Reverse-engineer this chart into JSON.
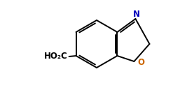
{
  "bg_color": "#ffffff",
  "bond_color": "#000000",
  "N_color": "#0000bb",
  "O_color": "#cc6600",
  "label_HO2C": "HO₂C",
  "label_N": "N",
  "label_O": "O",
  "figsize": [
    2.47,
    1.29
  ],
  "dpi": 100,
  "lw": 1.4
}
